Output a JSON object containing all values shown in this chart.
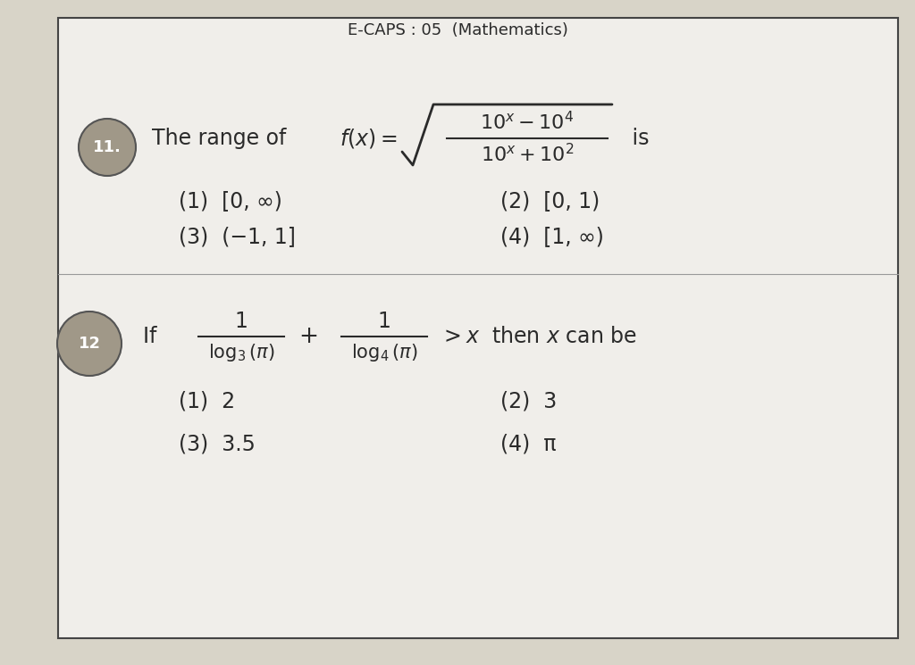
{
  "header": "E-CAPS : 05  (Mathematics)",
  "outer_bg": "#d8d4c8",
  "page_bg": "#f0eeea",
  "border_color": "#444444",
  "text_color": "#2a2a2a",
  "circle_color": "#a09888",
  "q11_opts": [
    "(1)  [0, ∞)",
    "(2)  [0, 1)",
    "(3)  (−1, 1]",
    "(4)  [1, ∞)"
  ],
  "q12_opts": [
    "(1)  2",
    "(2)  3",
    "(3)  3.5",
    "(4)  π"
  ],
  "fs_header": 13,
  "fs_main": 17,
  "fs_math": 16
}
